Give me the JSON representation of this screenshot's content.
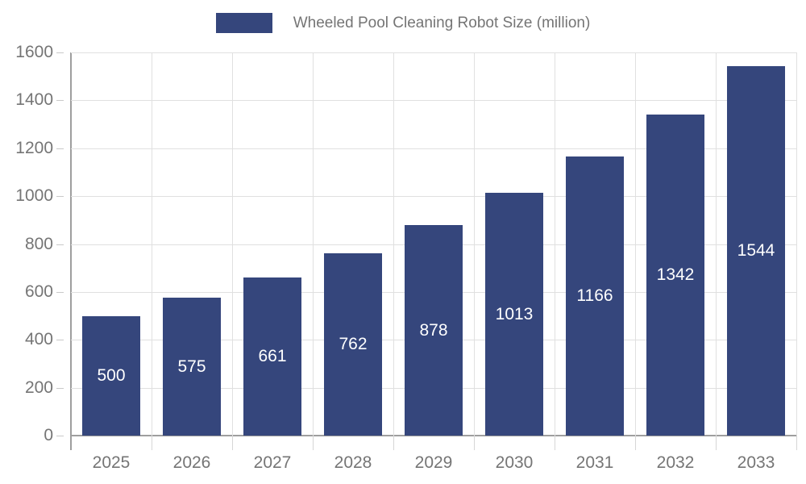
{
  "chart_data": {
    "type": "bar",
    "title": "Wheeled Pool Cleaning Robot Size (million)",
    "categories": [
      "2025",
      "2026",
      "2027",
      "2028",
      "2029",
      "2030",
      "2031",
      "2032",
      "2033"
    ],
    "values": [
      500,
      575,
      661,
      762,
      878,
      1013,
      1166,
      1342,
      1544
    ],
    "xlabel": "",
    "ylabel": "",
    "ylim": [
      0,
      1600
    ],
    "ytick_step": 200,
    "ytick_labels": [
      "0",
      "200",
      "400",
      "600",
      "800",
      "1000",
      "1200",
      "1400",
      "1600"
    ],
    "grid": true,
    "legend_position": "top",
    "value_labels": "inside-center"
  },
  "colors": {
    "bar": "#35467c",
    "bar_label": "#ffffff",
    "axis_text": "#757575",
    "legend_text": "#757575",
    "gridline": "#e0e0e0",
    "axis_line": "#9e9e9e",
    "background": "#ffffff"
  }
}
